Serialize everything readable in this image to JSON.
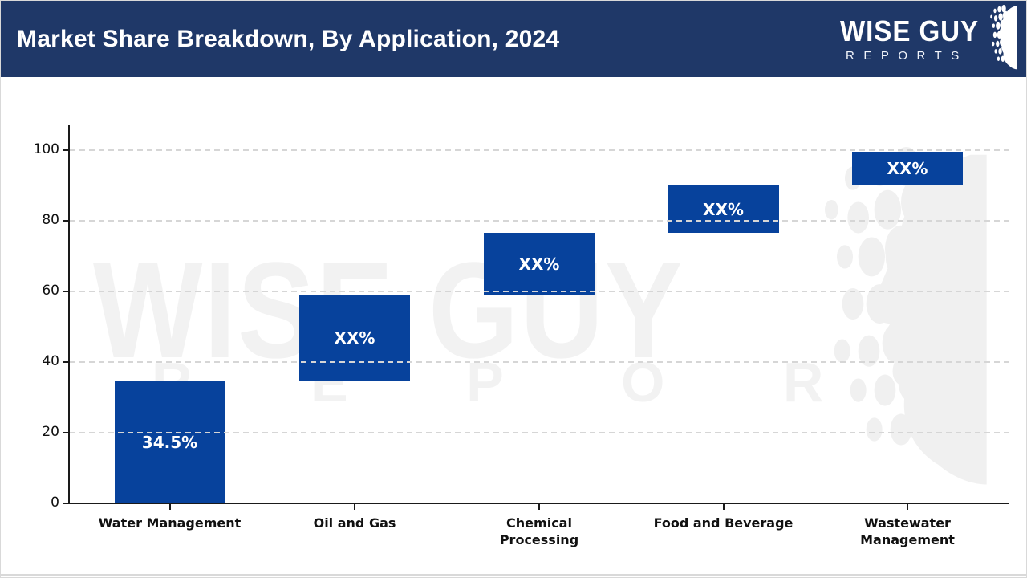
{
  "header": {
    "title": "Market Share Breakdown, By Application, 2024",
    "logo": {
      "wordmark": "WISE GUY",
      "subtext": "REPORTS"
    }
  },
  "watermark": {
    "line1": "WISE GUY",
    "line2": "R E P O R T S"
  },
  "colors": {
    "header_bg": "#1f3868",
    "bar": "#07429c",
    "grid": "#d6d6d6",
    "axis": "#1a1a1a",
    "title_text": "#ffffff",
    "bar_label_text": "#ffffff",
    "watermark": "#f2f2f2"
  },
  "chart_data": {
    "type": "bar",
    "subtype": "waterfall",
    "title": "Market Share Breakdown, By Application, 2024",
    "categories": [
      "Water Management",
      "Oil and Gas",
      "Chemical Processing",
      "Food and Beverage",
      "Wastewater Management"
    ],
    "category_label_lines": [
      [
        "Water Management"
      ],
      [
        "Oil and Gas"
      ],
      [
        "Chemical",
        "Processing"
      ],
      [
        "Food and Beverage"
      ],
      [
        "Wastewater",
        "Management"
      ]
    ],
    "bars": [
      {
        "category": "Water Management",
        "start": 0,
        "end": 34.5,
        "label": "34.5%"
      },
      {
        "category": "Oil and Gas",
        "start": 34.5,
        "end": 59,
        "label": "XX%"
      },
      {
        "category": "Chemical Processing",
        "start": 59,
        "end": 76.5,
        "label": "XX%"
      },
      {
        "category": "Food and Beverage",
        "start": 76.5,
        "end": 90,
        "label": "XX%"
      },
      {
        "category": "Wastewater Management",
        "start": 90,
        "end": 99.5,
        "label": "XX%"
      }
    ],
    "yticks": [
      0,
      20,
      40,
      60,
      80,
      100
    ],
    "ylim": [
      0,
      100
    ],
    "xlabel": "",
    "ylabel": "",
    "grid": "horizontal-dashed-above-bars",
    "legend": "none"
  }
}
